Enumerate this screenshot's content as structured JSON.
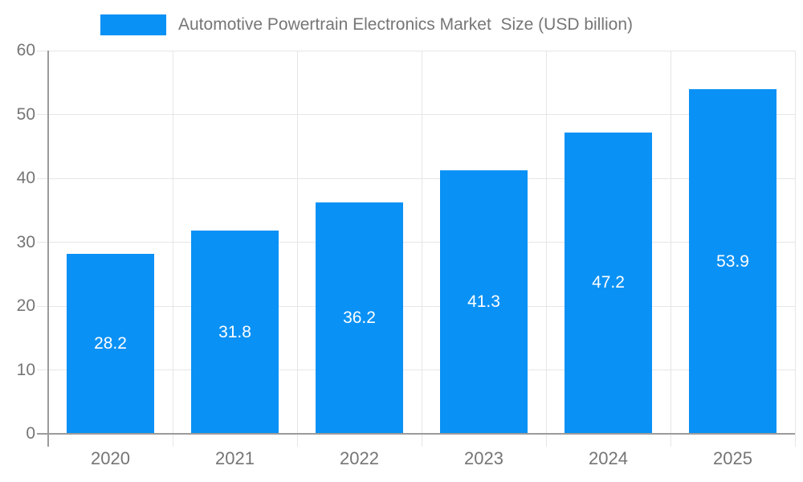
{
  "chart_data": {
    "type": "bar",
    "title": "Automotive Powertrain Electronics Market  Size (USD billion)",
    "categories": [
      "2020",
      "2021",
      "2022",
      "2023",
      "2024",
      "2025"
    ],
    "values": [
      28.2,
      31.8,
      36.2,
      41.3,
      47.2,
      53.9
    ],
    "series": [
      {
        "name": "Automotive Powertrain Electronics Market  Size (USD billion)",
        "values": [
          28.2,
          31.8,
          36.2,
          41.3,
          47.2,
          53.9
        ]
      }
    ],
    "xlabel": "",
    "ylabel": "",
    "ylim": [
      0,
      60
    ],
    "yticks": [
      0,
      10,
      20,
      30,
      40,
      50,
      60
    ],
    "grid": true,
    "legend_position": "top-left",
    "value_label_position": "inside-center"
  },
  "colors": {
    "bar": "#0a91f5",
    "title_text": "#767676",
    "axis_label_text": "#757575",
    "value_label_text": "#ffffff",
    "gridline": "#e6e6e6",
    "axis_line": "#9b9b9b",
    "background": "#ffffff"
  }
}
